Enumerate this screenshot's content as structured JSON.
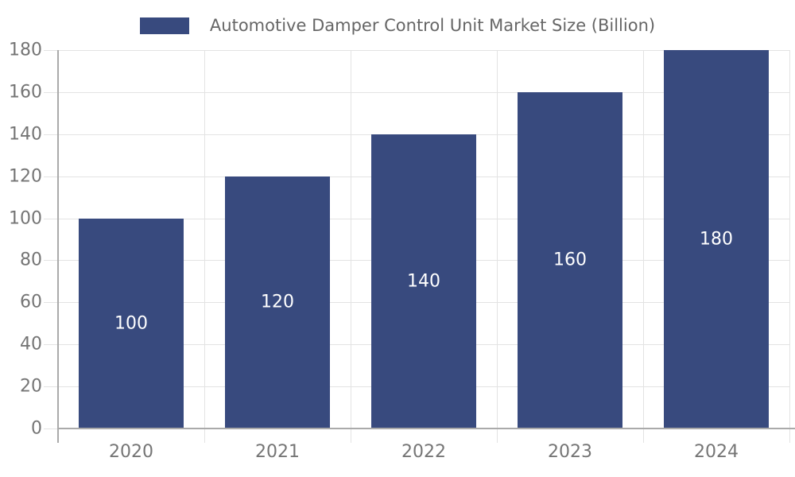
{
  "legend": {
    "label": "Automotive Damper Control Unit Market Size (Billion)",
    "position": "top"
  },
  "chart_data": {
    "type": "bar",
    "title": "Automotive Damper Control Unit Market Size (Billion)",
    "categories": [
      "2020",
      "2021",
      "2022",
      "2023",
      "2024"
    ],
    "values": [
      100,
      120,
      140,
      160,
      180
    ],
    "data_labels": [
      "100",
      "120",
      "140",
      "160",
      "180"
    ],
    "series": [
      {
        "name": "Automotive Damper Control Unit Market Size (Billion)",
        "values": [
          100,
          120,
          140,
          160,
          180
        ]
      }
    ],
    "xlabel": "",
    "ylabel": "",
    "ylim": [
      0,
      180
    ],
    "ytick_step": 20,
    "yticks": [
      0,
      20,
      40,
      60,
      80,
      100,
      120,
      140,
      160,
      180
    ],
    "grid": true,
    "legend_position": "top"
  },
  "colors": {
    "bar": "#384A7E",
    "bar_value_label": "#ffffff",
    "axis_line": "#aaaaaa",
    "gridline": "#e3e3e3",
    "tick_label": "#757575",
    "legend_text": "#666666",
    "background": "#ffffff"
  }
}
